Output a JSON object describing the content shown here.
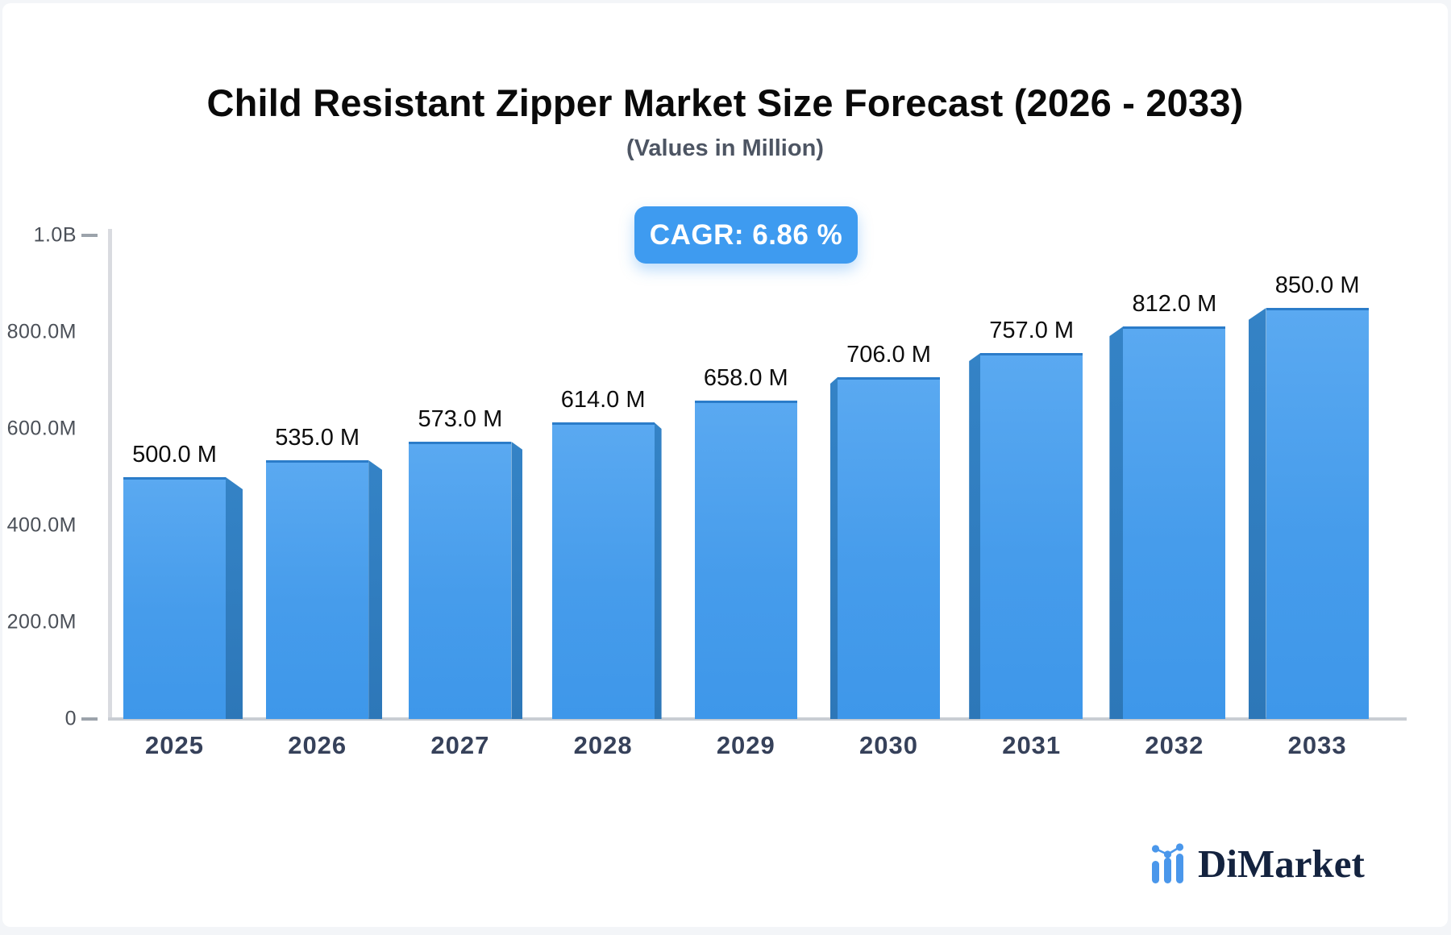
{
  "header": {
    "title": "Child Resistant Zipper Market Size Forecast (2026 - 2033)",
    "subtitle": "(Values in Million)"
  },
  "badge": {
    "label": "CAGR: 6.86 %",
    "color": "#3e9bf0"
  },
  "chart_data": {
    "type": "bar",
    "title": "Child Resistant Zipper Market Size Forecast (2026 - 2033)",
    "subtitle": "(Values in Million)",
    "categories": [
      "2025",
      "2026",
      "2027",
      "2028",
      "2029",
      "2030",
      "2031",
      "2032",
      "2033"
    ],
    "values": [
      500,
      535,
      573,
      614,
      658,
      706,
      757,
      812,
      850
    ],
    "value_labels": [
      "500.0 M",
      "535.0 M",
      "573.0 M",
      "614.0 M",
      "658.0 M",
      "706.0 M",
      "757.0 M",
      "812.0 M",
      "850.0 M"
    ],
    "unit": "Million",
    "ylim": [
      0,
      1000
    ],
    "y_ticks": [
      "1.0B",
      "800.0M",
      "600.0M",
      "400.0M",
      "200.0M",
      "0"
    ],
    "grid": "off",
    "legend": "none",
    "bar_colors": {
      "face_top": "#5aa9f1",
      "face_bottom": "#3e97ea",
      "side": "#2e78ba",
      "top_edge": "#2b7cc9"
    }
  },
  "footer": {
    "brand": "DiMarket",
    "brand_icon": "bar-chart-logo-icon",
    "icon_color": "#4a97eb",
    "text_color": "#14233f"
  }
}
